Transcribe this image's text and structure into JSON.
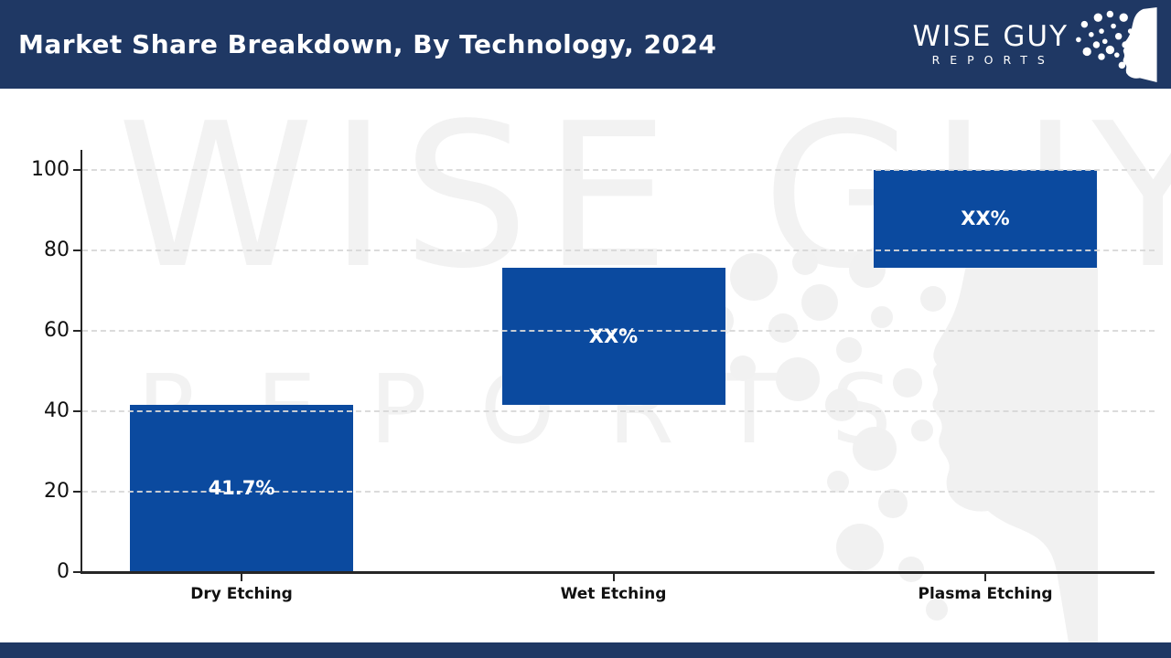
{
  "header": {
    "title": "Market Share Breakdown, By Technology, 2024",
    "logo": {
      "line1": "WISE GUY",
      "line2": "REPORTS"
    }
  },
  "watermark": {
    "line1": "WISE GUY",
    "line2": "REPORTS"
  },
  "colors": {
    "header_bg": "#1f3864",
    "footer_bg": "#1f3864",
    "bar_fill": "#0b4a9f",
    "bar_label_text": "#ffffff",
    "grid_line": "#d8d8d8",
    "axis_line": "#262626",
    "tick_text": "#111111",
    "watermark_text": "#f2f2f2"
  },
  "chart_data": {
    "type": "bar",
    "variant": "floating-waterfall",
    "title": "Market Share Breakdown, By Technology, 2024",
    "categories": [
      "Dry Etching",
      "Wet Etching",
      "Plasma Etching"
    ],
    "series": [
      {
        "name": "Market share",
        "segments": [
          {
            "category": "Dry Etching",
            "start": 0,
            "end": 41.7,
            "label": "41.7%"
          },
          {
            "category": "Wet Etching",
            "start": 41.7,
            "end": 75.7,
            "label": "XX%"
          },
          {
            "category": "Plasma Etching",
            "start": 75.7,
            "end": 100,
            "label": "XX%"
          }
        ]
      }
    ],
    "xlabel": "",
    "ylabel": "",
    "ylim": [
      0,
      100
    ],
    "yticks": [
      0,
      20,
      40,
      60,
      80,
      100
    ],
    "grid": "horizontal-dashed",
    "grid_above_bars": true,
    "legend": "none"
  }
}
